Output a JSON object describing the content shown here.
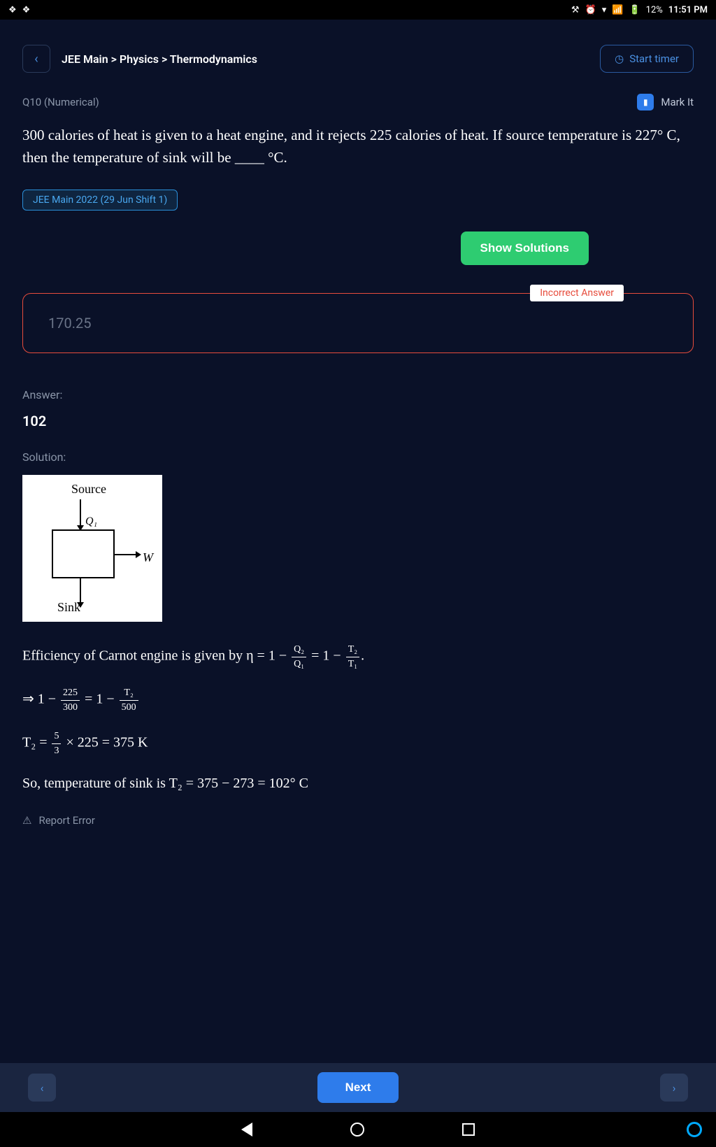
{
  "status": {
    "battery": "12%",
    "time": "11:51 PM"
  },
  "header": {
    "breadcrumb": "JEE Main > Physics > Thermodynamics",
    "timer_label": "Start timer"
  },
  "question": {
    "meta": "Q10 (Numerical)",
    "mark_label": "Mark It",
    "text": "300  calories of heat is given to a heat engine, and it rejects 225  calories of heat. If source temperature is 227° C, then the temperature of sink will be ____  °C.",
    "tag": "JEE Main 2022 (29 Jun Shift 1)"
  },
  "buttons": {
    "show_solutions": "Show Solutions",
    "next": "Next"
  },
  "user_answer": {
    "badge": "Incorrect Answer",
    "value": "170.25"
  },
  "answer": {
    "label": "Answer:",
    "value": "102"
  },
  "solution": {
    "label": "Solution:",
    "diagram": {
      "source": "Source",
      "q1": "Q₁",
      "w": "W",
      "sink": "Sink"
    },
    "line1_pre": "Efficiency of Carnot engine is given by η = 1 − ",
    "q2": "Q₂",
    "q1f": "Q₁",
    "line1_mid": " = 1 − ",
    "t2": "T₂",
    "t1": "T₁",
    "line1_end": ".",
    "line2_pre": "⇒ 1 − ",
    "n225": "225",
    "n300": "300",
    "line2_mid": " = 1 − ",
    "n500": "500",
    "line3_pre": "T₂ = ",
    "n5": "5",
    "n3": "3",
    "line3_post": " × 225 = 375 K",
    "line4": "So, temperature of sink is T₂ = 375 − 273 = 102° C"
  },
  "report": "Report Error"
}
